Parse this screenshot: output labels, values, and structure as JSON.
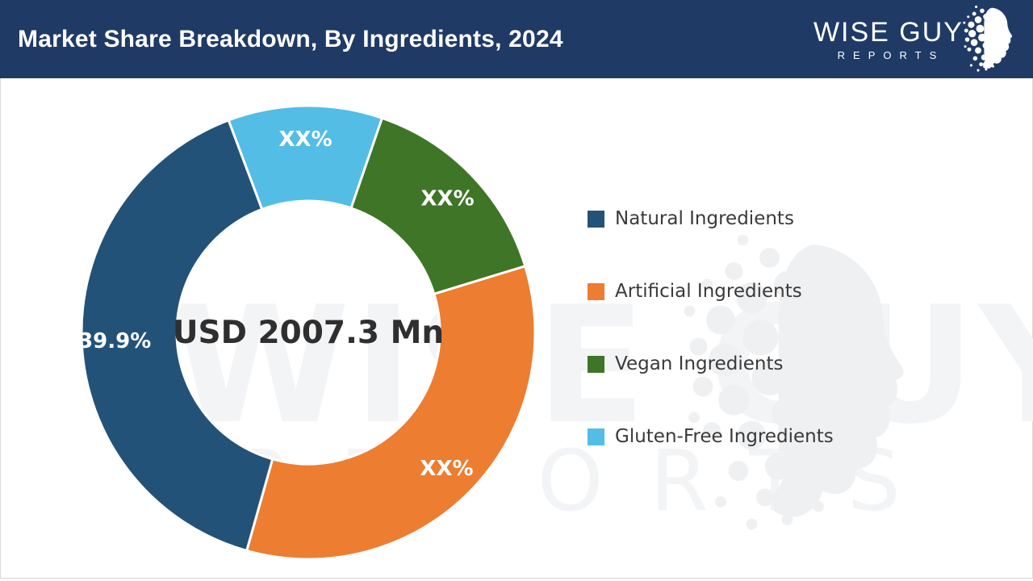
{
  "header": {
    "title": "Market Share Breakdown, By Ingredients, 2024",
    "bg_color": "#203a66",
    "logo": {
      "line1": "WISE GUY",
      "line2": "REPORTS"
    }
  },
  "watermark": {
    "line1": "WISE GUY",
    "line2": "REPORTS"
  },
  "chart_data": {
    "type": "pie",
    "subtype": "donut",
    "title": "Market Share Breakdown, By Ingredients, 2024",
    "center_label": "USD 2007.3 Mn",
    "legend_position": "right",
    "start_angle_deg": -20.6,
    "outer_radius": 281,
    "inner_radius": 163,
    "label_radius": 240,
    "slices": [
      {
        "label": "Natural Ingredients",
        "value_pct": 39.9,
        "display_label": "39.9%",
        "color": "#235278"
      },
      {
        "label": "Artificial Ingredients",
        "value_pct": 34.1,
        "display_label": "XX%",
        "color": "#ED7D31"
      },
      {
        "label": "Vegan Ingredients",
        "value_pct": 15.0,
        "display_label": "XX%",
        "color": "#3E7527"
      },
      {
        "label": "Gluten-Free Ingredients",
        "value_pct": 11.0,
        "display_label": "XX%",
        "color": "#53BDE5"
      }
    ]
  }
}
